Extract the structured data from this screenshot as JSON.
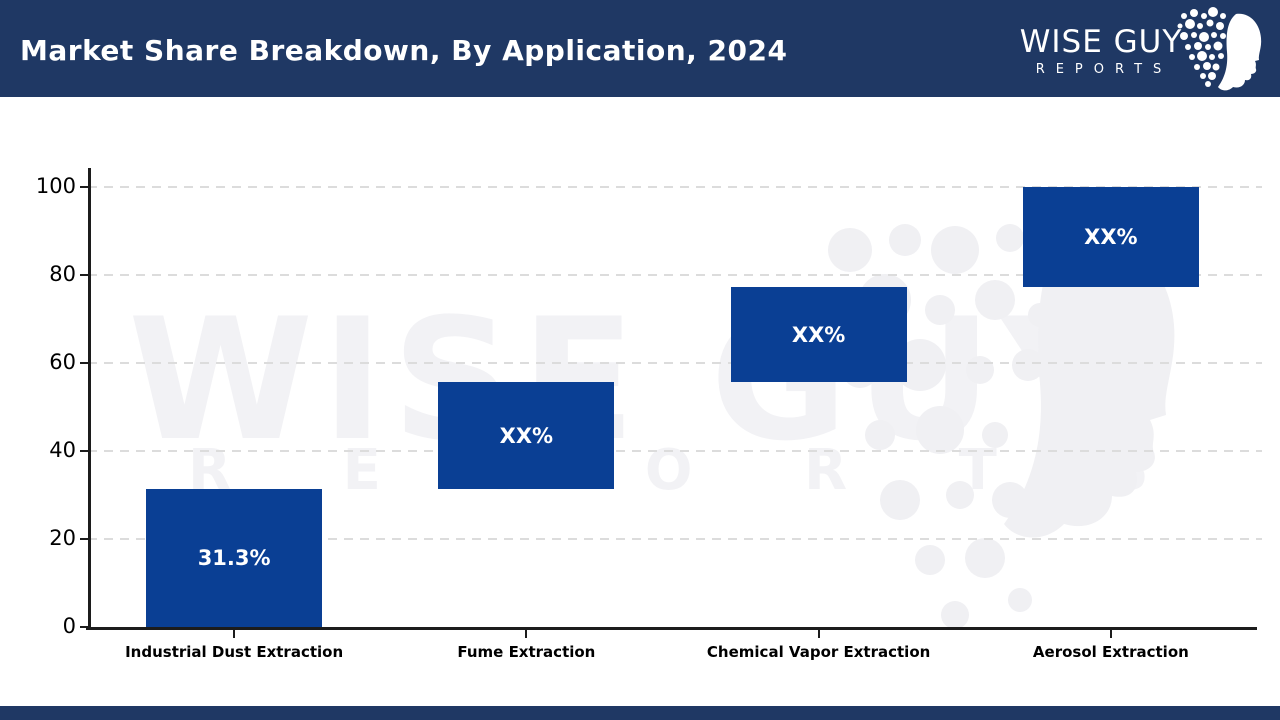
{
  "header": {
    "title": "Market Share Breakdown, By Application, 2024",
    "bg_color": "#1f3864",
    "logo": {
      "line1": "WISE GUY",
      "line2": "REPORTS"
    }
  },
  "watermark": {
    "line1": "WISE GUY",
    "line2": "R E P O R T S"
  },
  "footer": {
    "bg_color": "#1f3864"
  },
  "chart_data": {
    "type": "bar",
    "subtype": "waterfall",
    "title": "Market Share Breakdown, By Application, 2024",
    "categories": [
      "Industrial Dust Extraction",
      "Fume Extraction",
      "Chemical Vapor Extraction",
      "Aerosol Extraction"
    ],
    "segments": [
      {
        "category": "Industrial Dust Extraction",
        "start": 0,
        "end": 31.3,
        "label": "31.3%"
      },
      {
        "category": "Fume Extraction",
        "start": 31.3,
        "end": 55.7,
        "label": "XX%"
      },
      {
        "category": "Chemical Vapor Extraction",
        "start": 55.7,
        "end": 77.2,
        "label": "XX%"
      },
      {
        "category": "Aerosol Extraction",
        "start": 77.2,
        "end": 100,
        "label": "XX%"
      }
    ],
    "ylim": [
      0,
      100
    ],
    "yticks": [
      0,
      20,
      40,
      60,
      80,
      100
    ],
    "xlabel": "",
    "ylabel": "",
    "grid": true,
    "legend": false,
    "bar_color": "#0a3f94",
    "axis_color": "#1c1c1c",
    "gridline_color": "#dcdcdc",
    "bar_label_color": "#ffffff"
  }
}
